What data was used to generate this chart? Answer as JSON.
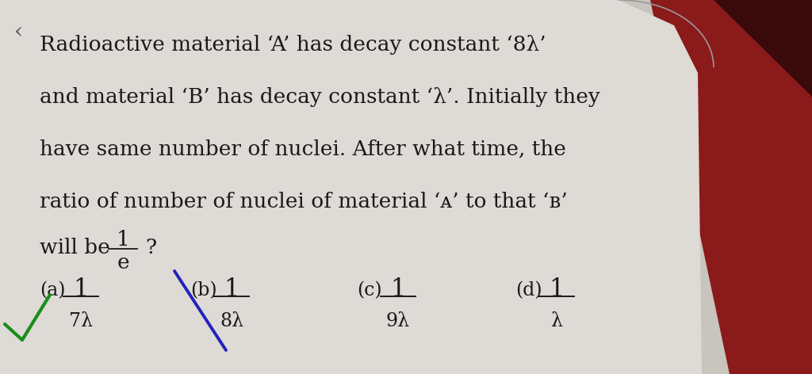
{
  "bg_color": "#c8c4be",
  "paper_color": "#e8e5e0",
  "text_color": "#1a1a1a",
  "line1": "Radioactive material ‘A’ has decay constant ‘8λ’",
  "line2": "and material ‘B’ has decay constant ‘λ’. Initially they",
  "line3": "have same number of nuclei. After what time, the",
  "line4": "ratio of number of nuclei of material ‘ᴀ’ to that ‘ʙ’",
  "line5_pre": "will be ",
  "frac_num": "1",
  "frac_den": "e",
  "line5_post": "?",
  "options": [
    {
      "label": "(a)",
      "num": "1",
      "den": "7λ"
    },
    {
      "label": "(b)",
      "num": "1",
      "den": "8λ"
    },
    {
      "label": "(c)",
      "num": "1",
      "den": "9λ"
    },
    {
      "label": "(d)",
      "num": "1",
      "den": "λ"
    }
  ],
  "checkmark_color": "#1a8c1a",
  "cross_color": "#2222bb",
  "red_cover_color": "#8B1A1A",
  "dark_cover_color": "#3a0a0a",
  "main_fontsize": 19,
  "option_fontsize": 22,
  "fig_width": 10.24,
  "fig_height": 4.72,
  "dpi": 100
}
